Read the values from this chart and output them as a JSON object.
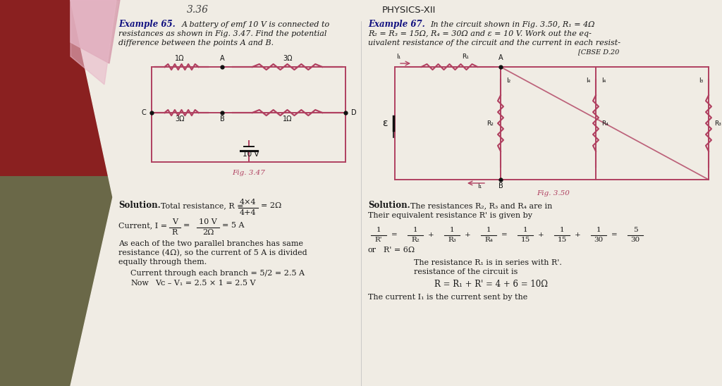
{
  "page_number": "3.36",
  "header": "PHYSICS-XII",
  "bg_color": "#8a3030",
  "paper_color": "#f0ece4",
  "circuit_color": "#b04060",
  "text_color": "#1a1a1a",
  "example_color": "#101080",
  "fig347_label": "Fig. 3.47",
  "fig350_label": "Fig. 3.50",
  "left_bg_top": "#8a2020",
  "left_bg_bot": "#6a7050"
}
